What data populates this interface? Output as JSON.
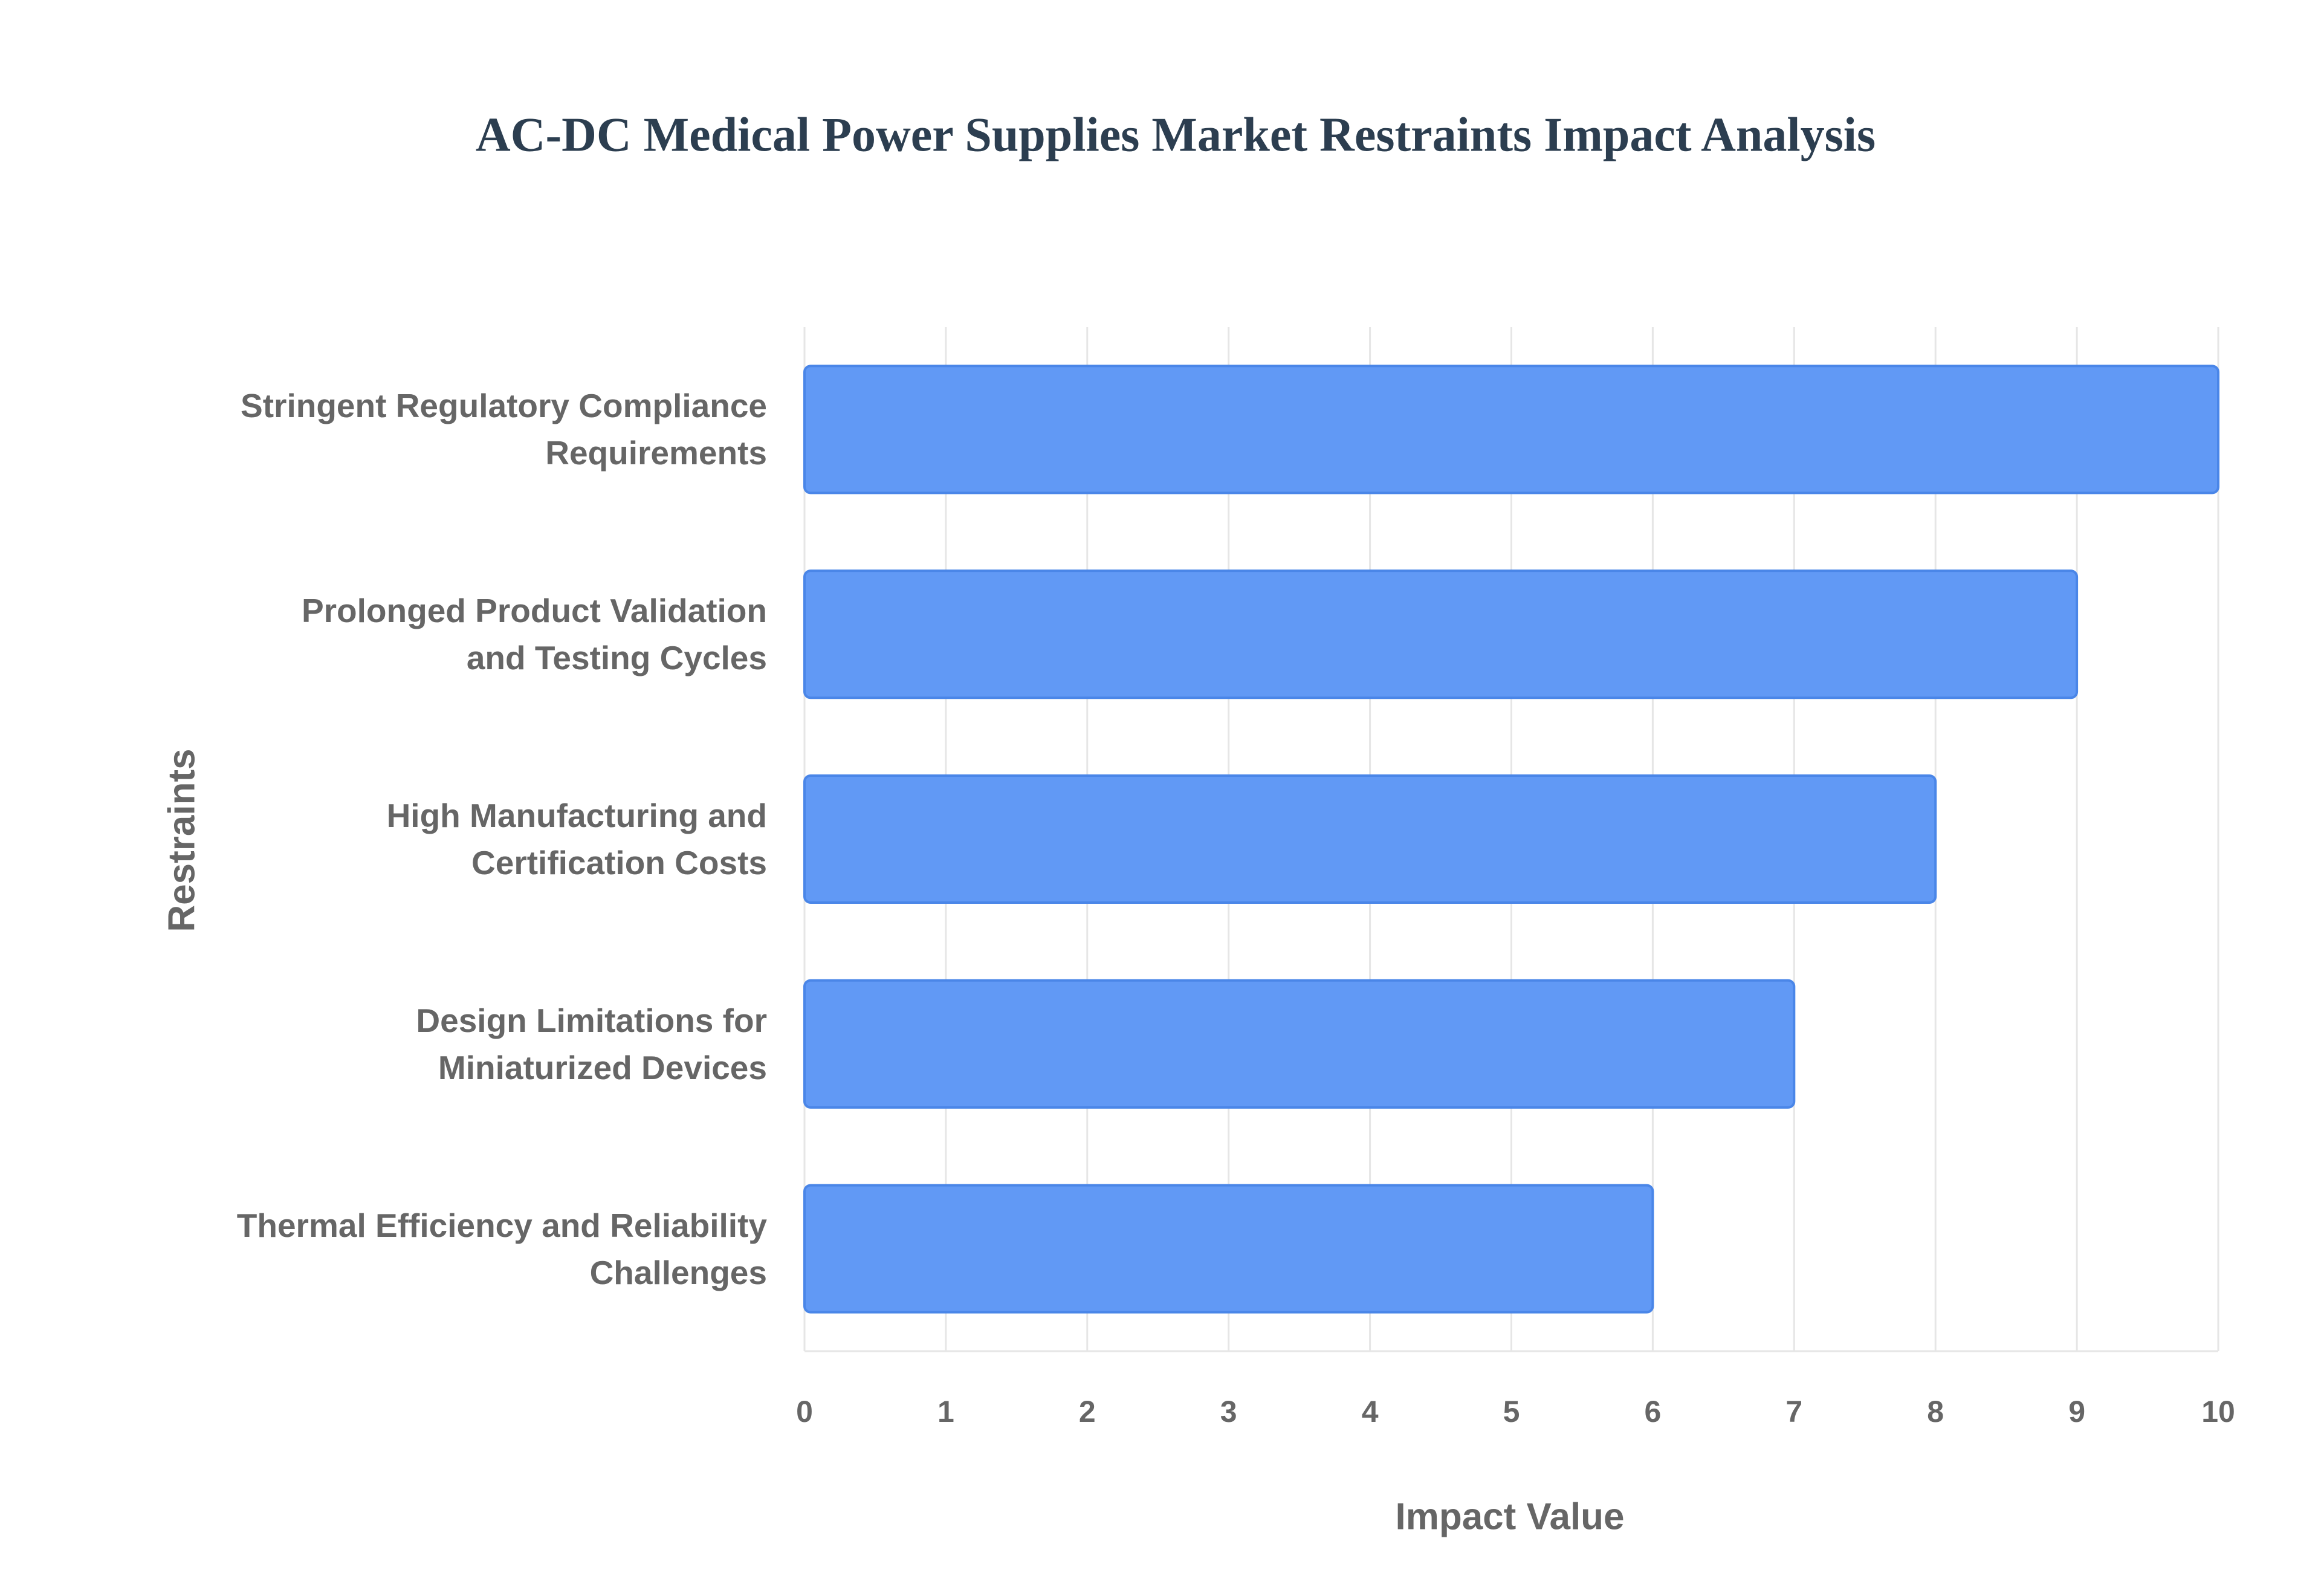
{
  "chart_data": {
    "type": "bar",
    "orientation": "horizontal",
    "title": "AC-DC Medical Power Supplies Market Restraints Impact Analysis",
    "x_label": "Impact Value",
    "y_label": "Restraints",
    "categories": [
      "Stringent Regulatory Compliance Requirements",
      "Prolonged Product Validation and Testing Cycles",
      "High Manufacturing and Certification Costs",
      "Design Limitations for Miniaturized Devices",
      "Thermal Efficiency and Reliability Challenges"
    ],
    "values": [
      10,
      9,
      8,
      7,
      6
    ],
    "color": "#6199f5",
    "xlim": [
      0,
      10
    ],
    "xticks": [
      0,
      1,
      2,
      3,
      4,
      5,
      6,
      7,
      8,
      9,
      10
    ],
    "grid": true
  }
}
